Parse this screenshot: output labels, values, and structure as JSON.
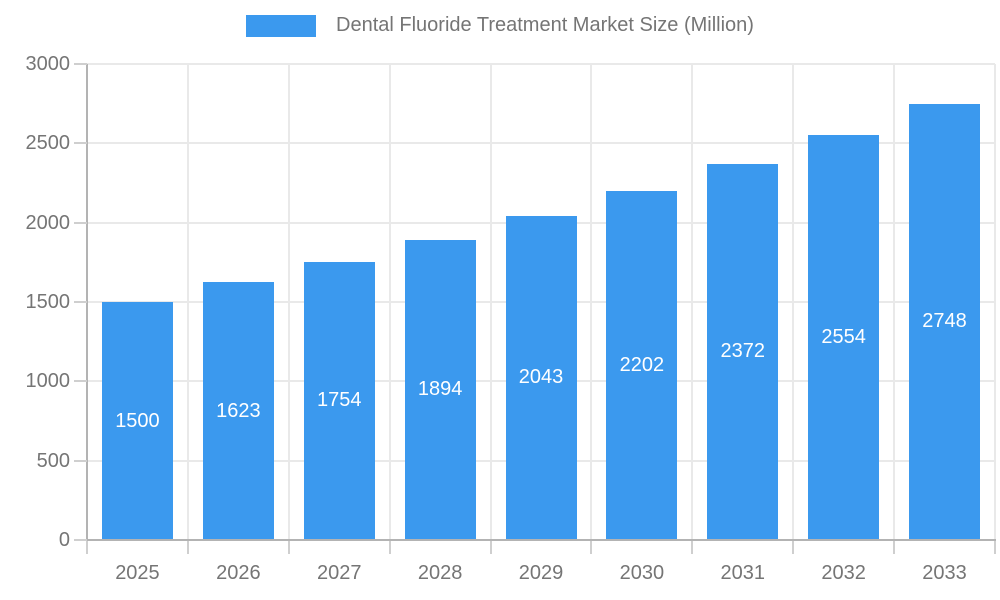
{
  "legend": {
    "label": "Dental Fluoride Treatment Market Size (Million)"
  },
  "colors": {
    "bar": "#3b99ee",
    "bar_label_text": "#ffffff",
    "axis_line": "#b3b3b3",
    "gridline": "#e9e9e9",
    "tick": "#cfcfcf",
    "axis_text": "#757575"
  },
  "chart_data": {
    "type": "bar",
    "title": "Dental Fluoride Treatment Market Size (Million)",
    "categories": [
      "2025",
      "2026",
      "2027",
      "2028",
      "2029",
      "2030",
      "2031",
      "2032",
      "2033"
    ],
    "values": [
      1500,
      1623,
      1754,
      1894,
      2043,
      2202,
      2372,
      2554,
      2748
    ],
    "series_name": "Dental Fluoride Treatment Market Size (Million)",
    "xlabel": "",
    "ylabel": "",
    "ylim": [
      0,
      3000
    ],
    "yticks": [
      0,
      500,
      1000,
      1500,
      2000,
      2500,
      3000
    ],
    "value_labels": "inside-center",
    "legend_position": "top-center",
    "grid": true
  }
}
